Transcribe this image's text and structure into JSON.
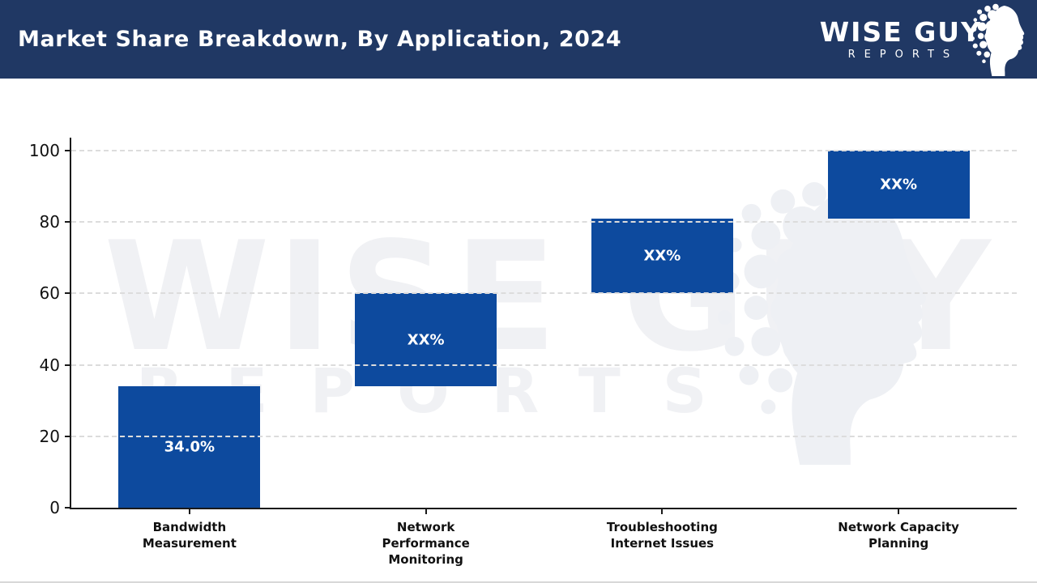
{
  "header": {
    "title": "Market Share Breakdown, By Application, 2024",
    "background_color": "#203864",
    "logo": {
      "line1": "WISE GUY",
      "line2": "REPORTS"
    }
  },
  "watermark": {
    "line1": "WISE GUY",
    "line2": "REPORTS"
  },
  "chart_data": {
    "type": "bar",
    "subtype": "waterfall",
    "title": "Market Share Breakdown, By Application, 2024",
    "categories": [
      [
        "Bandwidth",
        "Measurement"
      ],
      [
        "Network",
        "Performance",
        "Monitoring"
      ],
      [
        "Troubleshooting",
        "Internet Issues"
      ],
      [
        "Network Capacity",
        "Planning"
      ]
    ],
    "segments": [
      {
        "label": "34.0%",
        "start": 0,
        "end": 34,
        "value": 34
      },
      {
        "label": "XX%",
        "start": 34,
        "end": 60,
        "value": 26
      },
      {
        "label": "XX%",
        "start": 60,
        "end": 81,
        "value": 21
      },
      {
        "label": "XX%",
        "start": 81,
        "end": 100,
        "value": 19
      }
    ],
    "yticks": [
      0,
      20,
      40,
      60,
      80,
      100
    ],
    "ylim": [
      0,
      103.5
    ],
    "xlabel": "",
    "ylabel": "",
    "grid": "horizontal-dashed",
    "legend": "none",
    "bar_color": "#0d4a9e",
    "grid_color": "#dcdcdc",
    "axis_color": "#1a1a1a"
  }
}
